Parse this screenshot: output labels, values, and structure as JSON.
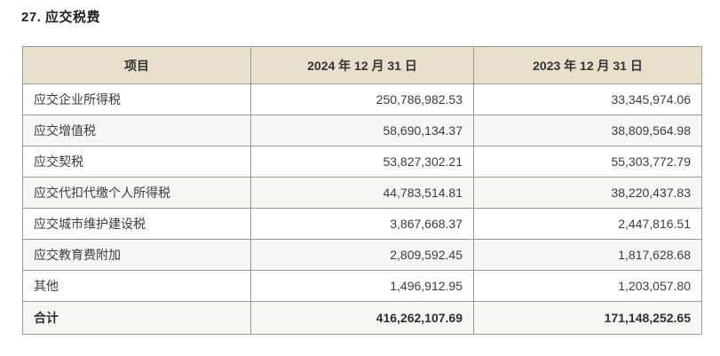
{
  "page": {
    "title": "27. 应交税费"
  },
  "colors": {
    "header_bg": "#e8e0cc",
    "stripe_bg": "#f8f6f2",
    "border": "#9a9a9a",
    "text": "#3c3c3c"
  },
  "table": {
    "columns": [
      "项目",
      "2024 年 12 月 31 日",
      "2023 年 12 月 31 日"
    ],
    "rows": [
      {
        "label": "应交企业所得税",
        "v2024": "250,786,982.53",
        "v2023": "33,345,974.06"
      },
      {
        "label": "应交增值税",
        "v2024": "58,690,134.37",
        "v2023": "38,809,564.98"
      },
      {
        "label": "应交契税",
        "v2024": "53,827,302.21",
        "v2023": "55,303,772.79"
      },
      {
        "label": "应交代扣代缴个人所得税",
        "v2024": "44,783,514.81",
        "v2023": "38,220,437.83"
      },
      {
        "label": "应交城市维护建设税",
        "v2024": "3,867,668.37",
        "v2023": "2,447,816.51"
      },
      {
        "label": "应交教育费附加",
        "v2024": "2,809,592.45",
        "v2023": "1,817,628.68"
      },
      {
        "label": "其他",
        "v2024": "1,496,912.95",
        "v2023": "1,203,057.80"
      }
    ],
    "total": {
      "label": "合计",
      "v2024": "416,262,107.69",
      "v2023": "171,148,252.65"
    }
  }
}
